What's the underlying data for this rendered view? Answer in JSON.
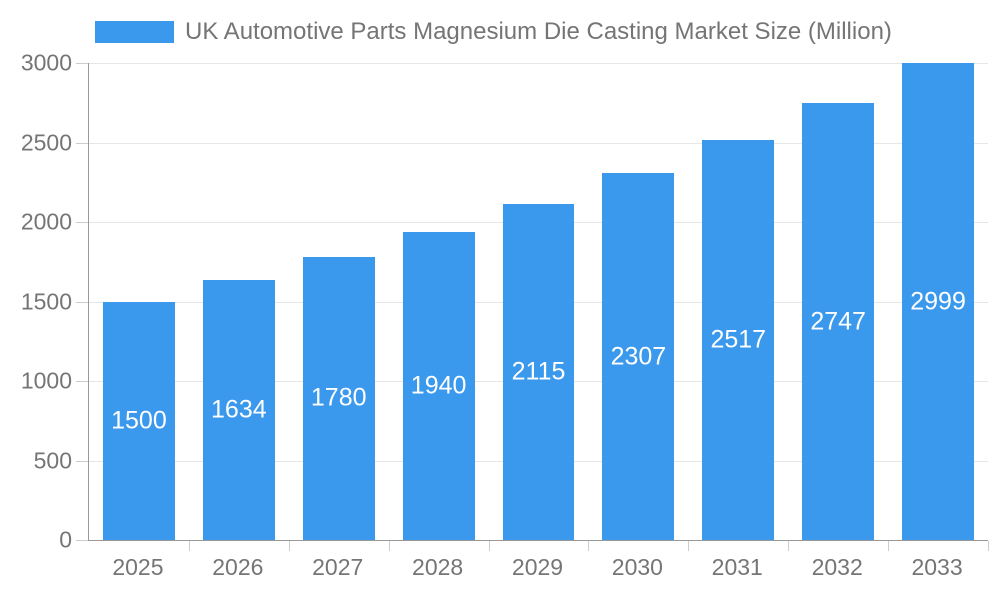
{
  "legend": {
    "label": "UK Automotive Parts Magnesium Die Casting Market Size (Million)"
  },
  "colors": {
    "bar": "#3a99ec",
    "axis": "#999999",
    "grid": "#e6e6e6",
    "tick": "#cccccc",
    "axis_label": "#757575",
    "value_label": "#ffffff",
    "background": "#ffffff"
  },
  "chart_data": {
    "type": "bar",
    "title": "UK Automotive Parts Magnesium Die Casting Market Size (Million)",
    "categories": [
      "2025",
      "2026",
      "2027",
      "2028",
      "2029",
      "2030",
      "2031",
      "2032",
      "2033"
    ],
    "values": [
      1500,
      1634,
      1780,
      1940,
      2115,
      2307,
      2517,
      2747,
      2999
    ],
    "xlabel": "",
    "ylabel": "",
    "ylim": [
      0,
      3000
    ],
    "yticks": [
      0,
      500,
      1000,
      1500,
      2000,
      2500,
      3000
    ],
    "grid": true,
    "legend_position": "top-left",
    "value_labels": "inside-center",
    "bar_width_fraction": 0.72
  }
}
